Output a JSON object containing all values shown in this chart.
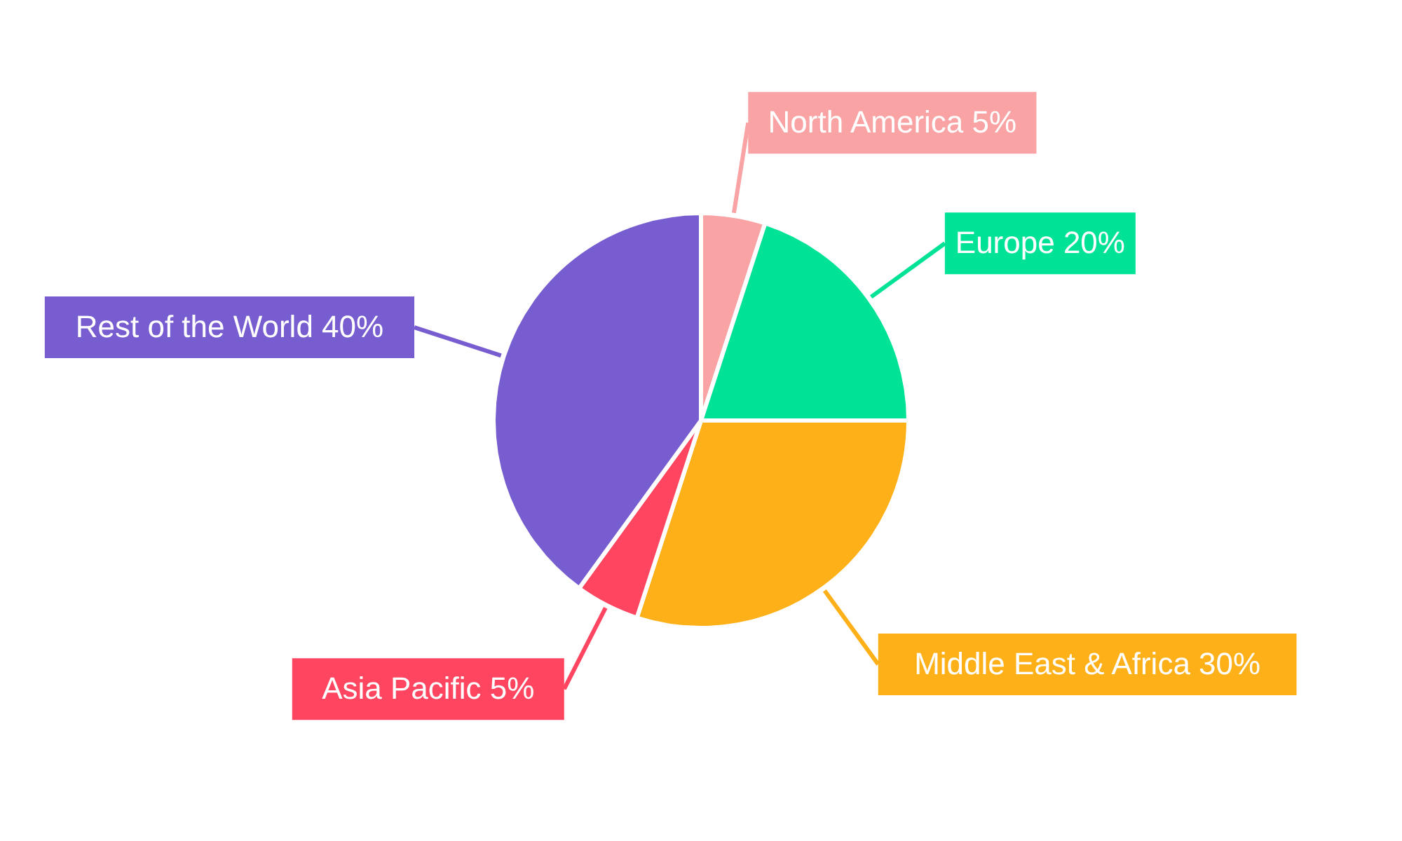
{
  "chart_data": {
    "type": "pie",
    "categories": [
      "North America",
      "Europe",
      "Middle East & Africa",
      "Asia Pacific",
      "Rest of the World"
    ],
    "values": [
      5,
      20,
      30,
      5,
      40
    ],
    "value_labels": [
      "5%",
      "20%",
      "30%",
      "5%",
      "40%"
    ],
    "colors": [
      "#f9a3a4",
      "#00e396",
      "#feb019",
      "#ff4560",
      "#775dd0"
    ]
  }
}
